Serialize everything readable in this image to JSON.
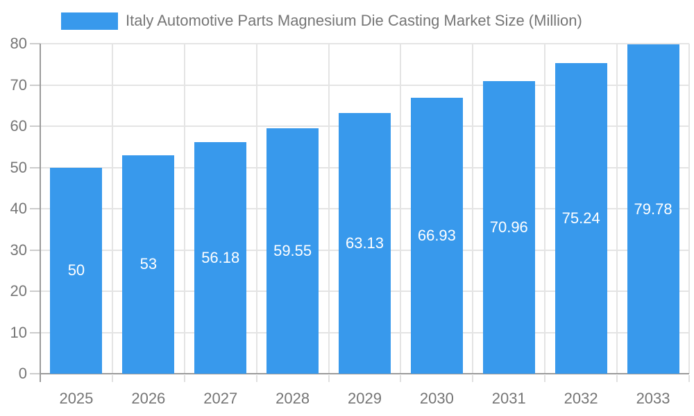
{
  "chart_data": {
    "type": "bar",
    "title": "Italy Automotive Parts Magnesium Die Casting Market Size (Million)",
    "categories": [
      "2025",
      "2026",
      "2027",
      "2028",
      "2029",
      "2030",
      "2031",
      "2032",
      "2033"
    ],
    "values": [
      50,
      53,
      56.18,
      59.55,
      63.13,
      66.93,
      70.96,
      75.24,
      79.78
    ],
    "value_labels": [
      "50",
      "53",
      "56.18",
      "59.55",
      "63.13",
      "66.93",
      "70.96",
      "75.24",
      "79.78"
    ],
    "xlabel": "",
    "ylabel": "",
    "ylim": [
      0,
      80
    ],
    "yticks": [
      0,
      10,
      20,
      30,
      40,
      50,
      60,
      70,
      80
    ],
    "ytick_labels": [
      "0",
      "10",
      "20",
      "30",
      "40",
      "50",
      "60",
      "70",
      "80"
    ],
    "grid": true,
    "legend_position": "top-left"
  },
  "colors": {
    "bar": "#3899ec",
    "bar_value_text": "#ffffff",
    "axis": "#9a9a9a",
    "grid": "#e4e4e4",
    "y_tick": "#cccccc",
    "x_tick": "#e0e0e0",
    "tick_text": "#757575",
    "legend_text": "#757575",
    "background": "#ffffff"
  }
}
